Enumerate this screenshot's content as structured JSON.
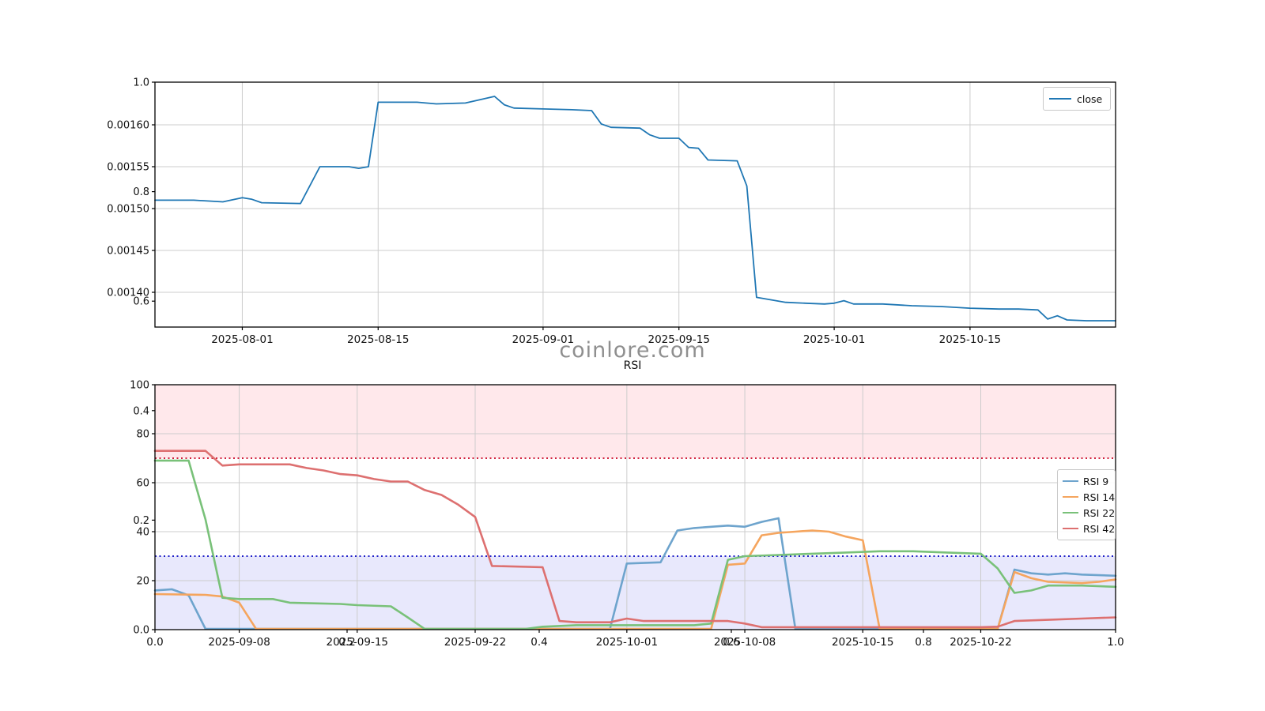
{
  "watermark": "coinlore.com",
  "chart_data": {
    "price_chart": {
      "type": "line",
      "x_domain": [
        "2025-07-23",
        "2025-10-30"
      ],
      "y_range_approx": [
        0.001359,
        0.001651
      ],
      "grid": true,
      "legend_position": "upper right",
      "y_ticks": [
        {
          "v": 0.0016,
          "label": "0.00160"
        },
        {
          "v": 0.00155,
          "label": "0.00155"
        },
        {
          "v": 0.0015,
          "label": "0.00150"
        },
        {
          "v": 0.00145,
          "label": "0.00145"
        },
        {
          "v": 0.0014,
          "label": "0.00140"
        }
      ],
      "overlay_y_ticks": [
        {
          "f": 1.0,
          "label": "1.0"
        },
        {
          "f": 0.8,
          "label": "0.8"
        },
        {
          "f": 0.6,
          "label": "0.6"
        }
      ],
      "x_ticks": [
        {
          "date": "2025-08-01",
          "label": "2025-08-01"
        },
        {
          "date": "2025-08-15",
          "label": "2025-08-15"
        },
        {
          "date": "2025-09-01",
          "label": "2025-09-01"
        },
        {
          "date": "2025-09-15",
          "label": "2025-09-15"
        },
        {
          "date": "2025-10-01",
          "label": "2025-10-01"
        },
        {
          "date": "2025-10-15",
          "label": "2025-10-15"
        }
      ],
      "series": [
        {
          "name": "close",
          "color": "#1f77b4",
          "points": [
            [
              "2025-07-23",
              0.00151
            ],
            [
              "2025-07-27",
              0.00151
            ],
            [
              "2025-07-30",
              0.001508
            ],
            [
              "2025-08-01",
              0.001513
            ],
            [
              "2025-08-02",
              0.001511
            ],
            [
              "2025-08-03",
              0.001507
            ],
            [
              "2025-08-07",
              0.001506
            ],
            [
              "2025-08-09",
              0.00155
            ],
            [
              "2025-08-12",
              0.00155
            ],
            [
              "2025-08-13",
              0.001548
            ],
            [
              "2025-08-14",
              0.00155
            ],
            [
              "2025-08-15",
              0.001627
            ],
            [
              "2025-08-19",
              0.001627
            ],
            [
              "2025-08-21",
              0.001625
            ],
            [
              "2025-08-24",
              0.001626
            ],
            [
              "2025-08-27",
              0.001634
            ],
            [
              "2025-08-28",
              0.001624
            ],
            [
              "2025-08-29",
              0.00162
            ],
            [
              "2025-09-01",
              0.001619
            ],
            [
              "2025-09-04",
              0.001618
            ],
            [
              "2025-09-06",
              0.001617
            ],
            [
              "2025-09-07",
              0.001601
            ],
            [
              "2025-09-08",
              0.001597
            ],
            [
              "2025-09-11",
              0.001596
            ],
            [
              "2025-09-12",
              0.001588
            ],
            [
              "2025-09-13",
              0.001584
            ],
            [
              "2025-09-15",
              0.001584
            ],
            [
              "2025-09-16",
              0.001573
            ],
            [
              "2025-09-17",
              0.001572
            ],
            [
              "2025-09-18",
              0.001558
            ],
            [
              "2025-09-21",
              0.001557
            ],
            [
              "2025-09-22",
              0.001527
            ],
            [
              "2025-09-23",
              0.001394
            ],
            [
              "2025-09-24",
              0.001392
            ],
            [
              "2025-09-26",
              0.001388
            ],
            [
              "2025-09-28",
              0.001387
            ],
            [
              "2025-09-30",
              0.001386
            ],
            [
              "2025-10-01",
              0.001387
            ],
            [
              "2025-10-02",
              0.00139
            ],
            [
              "2025-10-03",
              0.001386
            ],
            [
              "2025-10-06",
              0.001386
            ],
            [
              "2025-10-09",
              0.001384
            ],
            [
              "2025-10-12",
              0.001383
            ],
            [
              "2025-10-15",
              0.001381
            ],
            [
              "2025-10-18",
              0.00138
            ],
            [
              "2025-10-20",
              0.00138
            ],
            [
              "2025-10-22",
              0.001379
            ],
            [
              "2025-10-23",
              0.001368
            ],
            [
              "2025-10-24",
              0.001372
            ],
            [
              "2025-10-25",
              0.001367
            ],
            [
              "2025-10-27",
              0.001366
            ],
            [
              "2025-10-30",
              0.001366
            ]
          ]
        }
      ]
    },
    "rsi_chart": {
      "type": "line",
      "title": "RSI",
      "x_domain": [
        "2025-09-03",
        "2025-10-30"
      ],
      "ylim": [
        0,
        100
      ],
      "grid": true,
      "legend_position": "right",
      "overbought_band": [
        70,
        100
      ],
      "oversold_band": [
        0,
        30
      ],
      "ref_lines": [
        {
          "v": 70,
          "color": "#d1203c"
        },
        {
          "v": 30,
          "color": "#2020c8"
        }
      ],
      "band_colors": {
        "overbought": "rgba(255,80,100,0.13)",
        "oversold": "rgba(80,80,230,0.13)"
      },
      "y_ticks": [
        {
          "v": 100,
          "label": "100"
        },
        {
          "v": 80,
          "label": "80"
        },
        {
          "v": 60,
          "label": "60"
        },
        {
          "v": 40,
          "label": "40"
        },
        {
          "v": 20,
          "label": "20"
        }
      ],
      "overlay_y_ticks": [
        {
          "f": 0.4,
          "label": "0.4"
        },
        {
          "f": 0.2,
          "label": "0.2"
        },
        {
          "f": 0.0,
          "label": "0.0"
        }
      ],
      "x_ticks": [
        {
          "date": "2025-09-08",
          "label": "2025-09-08"
        },
        {
          "date": "2025-09-15",
          "label": "2025-09-15"
        },
        {
          "date": "2025-09-22",
          "label": "2025-09-22"
        },
        {
          "date": "2025-10-01",
          "label": "2025-10-01"
        },
        {
          "date": "2025-10-08",
          "label": "2025-10-08"
        },
        {
          "date": "2025-10-15",
          "label": "2025-10-15"
        },
        {
          "date": "2025-10-22",
          "label": "2025-10-22"
        }
      ],
      "overlay_x_ticks": [
        {
          "f": 0.0,
          "label": "0.0"
        },
        {
          "f": 0.2,
          "label": "0.2"
        },
        {
          "f": 0.4,
          "label": "0.4"
        },
        {
          "f": 0.6,
          "label": "0.6"
        },
        {
          "f": 0.8,
          "label": "0.8"
        },
        {
          "f": 1.0,
          "label": "1.0"
        }
      ],
      "series": [
        {
          "name": "RSI 9",
          "color": "#6ea4cd",
          "points": [
            [
              "2025-09-03",
              16
            ],
            [
              "2025-09-04",
              16.5
            ],
            [
              "2025-09-05",
              14
            ],
            [
              "2025-09-06",
              0.3
            ],
            [
              "2025-09-30",
              0.3
            ],
            [
              "2025-10-01",
              27
            ],
            [
              "2025-10-03",
              27.5
            ],
            [
              "2025-10-04",
              40.5
            ],
            [
              "2025-10-05",
              41.5
            ],
            [
              "2025-10-06",
              42
            ],
            [
              "2025-10-07",
              42.5
            ],
            [
              "2025-10-08",
              42
            ],
            [
              "2025-10-09",
              44
            ],
            [
              "2025-10-10",
              45.5
            ],
            [
              "2025-10-11",
              0.3
            ],
            [
              "2025-10-23",
              0.3
            ],
            [
              "2025-10-24",
              24.5
            ],
            [
              "2025-10-25",
              23
            ],
            [
              "2025-10-26",
              22.5
            ],
            [
              "2025-10-27",
              23
            ],
            [
              "2025-10-28",
              22.5
            ],
            [
              "2025-10-30",
              22
            ]
          ]
        },
        {
          "name": "RSI 14",
          "color": "#f5a55e",
          "points": [
            [
              "2025-09-03",
              14.5
            ],
            [
              "2025-09-06",
              14.2
            ],
            [
              "2025-09-07",
              13.5
            ],
            [
              "2025-09-08",
              11
            ],
            [
              "2025-09-09",
              0.3
            ],
            [
              "2025-10-06",
              0.3
            ],
            [
              "2025-10-07",
              26.5
            ],
            [
              "2025-10-08",
              27
            ],
            [
              "2025-10-09",
              38.5
            ],
            [
              "2025-10-10",
              39.5
            ],
            [
              "2025-10-11",
              40
            ],
            [
              "2025-10-12",
              40.5
            ],
            [
              "2025-10-13",
              40
            ],
            [
              "2025-10-14",
              38
            ],
            [
              "2025-10-15",
              36.5
            ],
            [
              "2025-10-16",
              0.3
            ],
            [
              "2025-10-23",
              0.3
            ],
            [
              "2025-10-24",
              23.5
            ],
            [
              "2025-10-25",
              21
            ],
            [
              "2025-10-26",
              19.5
            ],
            [
              "2025-10-28",
              19
            ],
            [
              "2025-10-29",
              19.5
            ],
            [
              "2025-10-30",
              20.5
            ]
          ]
        },
        {
          "name": "RSI 22",
          "color": "#79c179",
          "points": [
            [
              "2025-09-03",
              69
            ],
            [
              "2025-09-05",
              69
            ],
            [
              "2025-09-06",
              45
            ],
            [
              "2025-09-07",
              13
            ],
            [
              "2025-09-08",
              12.5
            ],
            [
              "2025-09-10",
              12.5
            ],
            [
              "2025-09-11",
              11
            ],
            [
              "2025-09-14",
              10.5
            ],
            [
              "2025-09-15",
              10
            ],
            [
              "2025-09-17",
              9.5
            ],
            [
              "2025-09-18",
              5
            ],
            [
              "2025-09-19",
              0.3
            ],
            [
              "2025-09-25",
              0.3
            ],
            [
              "2025-09-26",
              1.2
            ],
            [
              "2025-09-28",
              1.8
            ],
            [
              "2025-10-05",
              1.8
            ],
            [
              "2025-10-06",
              2.5
            ],
            [
              "2025-10-07",
              28.5
            ],
            [
              "2025-10-08",
              30
            ],
            [
              "2025-10-10",
              30.5
            ],
            [
              "2025-10-12",
              31
            ],
            [
              "2025-10-14",
              31.5
            ],
            [
              "2025-10-16",
              32
            ],
            [
              "2025-10-18",
              32
            ],
            [
              "2025-10-20",
              31.5
            ],
            [
              "2025-10-22",
              31
            ],
            [
              "2025-10-23",
              25
            ],
            [
              "2025-10-24",
              15
            ],
            [
              "2025-10-25",
              16
            ],
            [
              "2025-10-26",
              18
            ],
            [
              "2025-10-28",
              18
            ],
            [
              "2025-10-30",
              17.5
            ]
          ]
        },
        {
          "name": "RSI 42",
          "color": "#dd7070",
          "points": [
            [
              "2025-09-03",
              73
            ],
            [
              "2025-09-06",
              73
            ],
            [
              "2025-09-07",
              67
            ],
            [
              "2025-09-08",
              67.5
            ],
            [
              "2025-09-11",
              67.5
            ],
            [
              "2025-09-12",
              66
            ],
            [
              "2025-09-13",
              65
            ],
            [
              "2025-09-14",
              63.5
            ],
            [
              "2025-09-15",
              63
            ],
            [
              "2025-09-16",
              61.5
            ],
            [
              "2025-09-17",
              60.5
            ],
            [
              "2025-09-18",
              60.5
            ],
            [
              "2025-09-19",
              57
            ],
            [
              "2025-09-20",
              55
            ],
            [
              "2025-09-21",
              51
            ],
            [
              "2025-09-22",
              46
            ],
            [
              "2025-09-23",
              26
            ],
            [
              "2025-09-26",
              25.5
            ],
            [
              "2025-09-27",
              3.5
            ],
            [
              "2025-09-28",
              3
            ],
            [
              "2025-09-30",
              3
            ],
            [
              "2025-10-01",
              4.5
            ],
            [
              "2025-10-02",
              3.5
            ],
            [
              "2025-10-07",
              3.5
            ],
            [
              "2025-10-08",
              2.5
            ],
            [
              "2025-10-09",
              1
            ],
            [
              "2025-10-22",
              1
            ],
            [
              "2025-10-23",
              1.2
            ],
            [
              "2025-10-24",
              3.5
            ],
            [
              "2025-10-26",
              4
            ],
            [
              "2025-10-28",
              4.5
            ],
            [
              "2025-10-30",
              5
            ]
          ]
        }
      ]
    }
  }
}
